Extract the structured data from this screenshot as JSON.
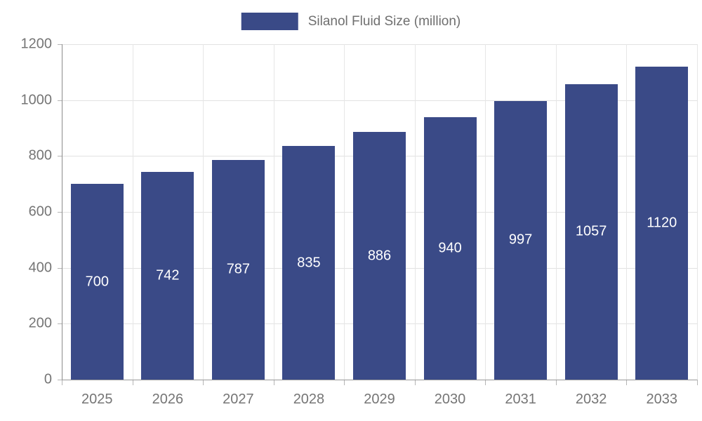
{
  "chart_data": {
    "type": "bar",
    "legend": "Silanol Fluid Size (million)",
    "categories": [
      "2025",
      "2026",
      "2027",
      "2028",
      "2029",
      "2030",
      "2031",
      "2032",
      "2033"
    ],
    "series": [
      {
        "name": "Silanol Fluid Size (million)",
        "values": [
          700,
          742,
          787,
          835,
          886,
          940,
          997,
          1057,
          1120
        ]
      }
    ],
    "values": [
      700,
      742,
      787,
      835,
      886,
      940,
      997,
      1057,
      1120
    ],
    "bar_labels": [
      "700",
      "742",
      "787",
      "835",
      "886",
      "940",
      "997",
      "1057",
      "1120"
    ],
    "xlabel": "",
    "ylabel": "",
    "ylim": [
      0,
      1200
    ],
    "ytick_interval": 200,
    "ytick_labels": [
      "0",
      "200",
      "400",
      "600",
      "800",
      "1000",
      "1200"
    ],
    "grid": true,
    "legend_position": "top-center",
    "colors": {
      "bar": "#3a4a87",
      "bar_label": "#ffffff",
      "axis_text": "#757575",
      "legend_text": "#6f6f6f",
      "gridline": "#e2e2e2",
      "axis_line": "#8b8b8b",
      "background": "#ffffff"
    }
  }
}
